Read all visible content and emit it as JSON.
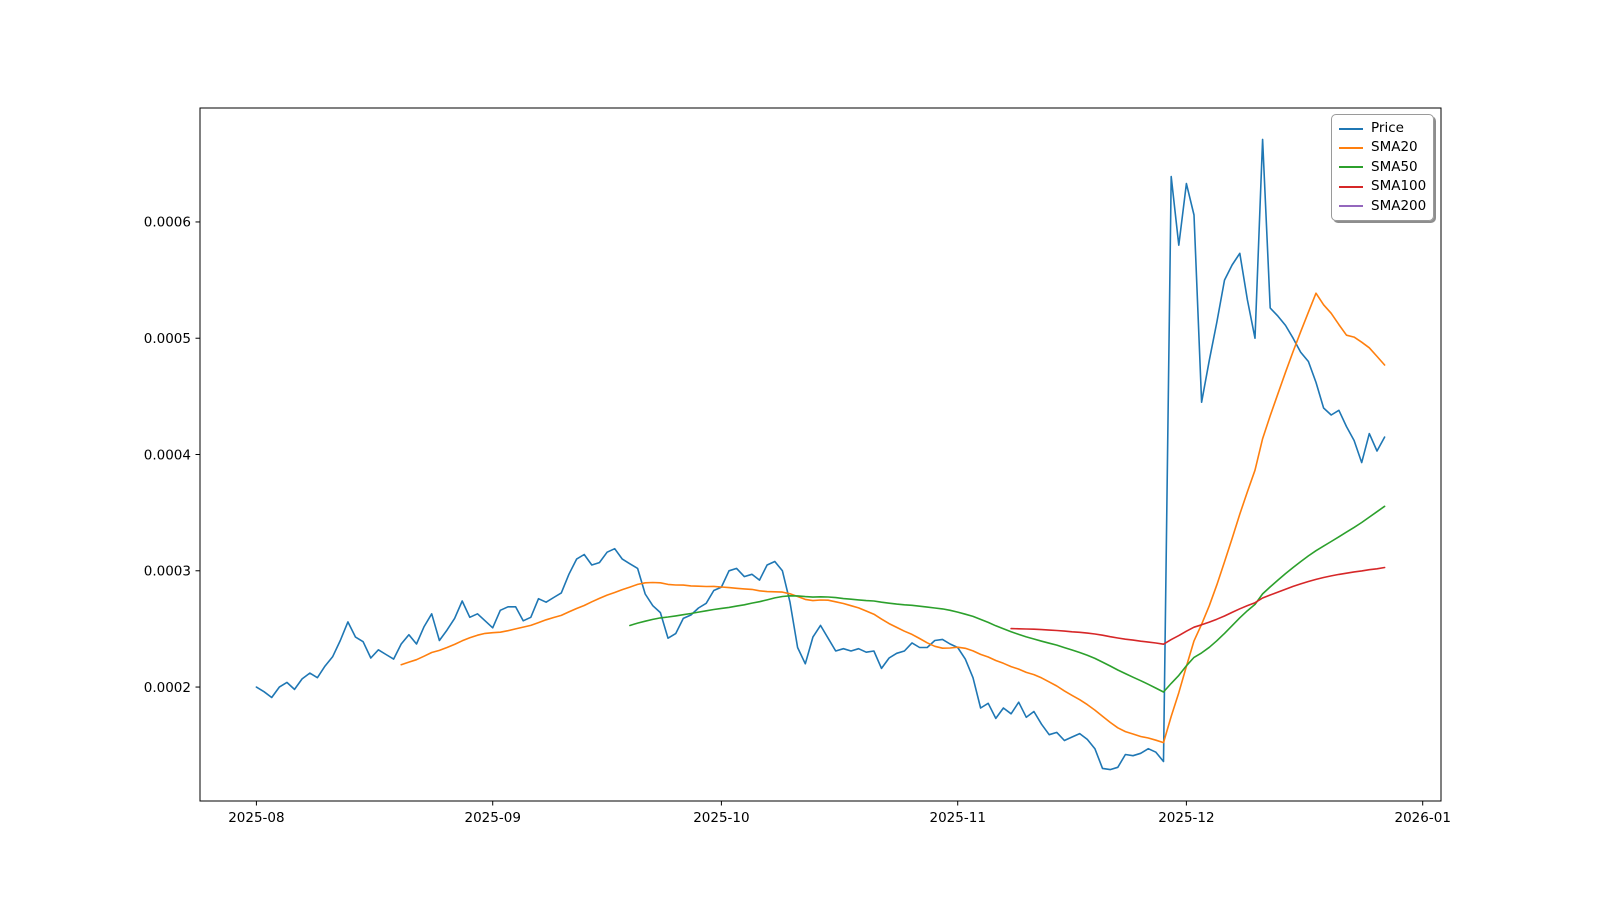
{
  "figure": {
    "background": "#ffffff"
  },
  "chart_data": {
    "type": "line",
    "title": "",
    "xlabel": "",
    "ylabel": "",
    "grid": false,
    "x_axis": {
      "frequency": "daily",
      "start_date": "2025-08-01",
      "end_date": "2025-12-27",
      "tick_labels": [
        "2025-08",
        "2025-09",
        "2025-10",
        "2025-11",
        "2025-12",
        "2026-01"
      ],
      "tick_day_offsets": [
        0,
        31,
        61,
        92,
        122,
        153
      ],
      "xlim_days": [
        -7.4,
        155.4
      ]
    },
    "y_axis": {
      "tick_labels": [
        "0.0002",
        "0.0003",
        "0.0004",
        "0.0005",
        "0.0006"
      ],
      "tick_values": [
        0.0002,
        0.0003,
        0.0004,
        0.0005,
        0.0006
      ],
      "ylim": [
        0.000102,
        0.000698
      ]
    },
    "series": [
      {
        "name": "Price",
        "color": "#1f77b4",
        "kind": "raw",
        "values": [
          0.0002,
          0.000196,
          0.000191,
          0.0002,
          0.000204,
          0.000198,
          0.000207,
          0.000212,
          0.000208,
          0.000218,
          0.000226,
          0.00024,
          0.000256,
          0.000243,
          0.000239,
          0.000225,
          0.000232,
          0.000228,
          0.000224,
          0.000237,
          0.000245,
          0.000237,
          0.000252,
          0.000263,
          0.00024,
          0.000249,
          0.000259,
          0.000274,
          0.00026,
          0.000263,
          0.000257,
          0.000251,
          0.000266,
          0.000269,
          0.000269,
          0.000257,
          0.00026,
          0.000276,
          0.000273,
          0.000277,
          0.000281,
          0.000297,
          0.00031,
          0.000314,
          0.000305,
          0.000307,
          0.000316,
          0.000319,
          0.00031,
          0.000306,
          0.000302,
          0.00028,
          0.00027,
          0.000264,
          0.000242,
          0.000246,
          0.000259,
          0.000262,
          0.000268,
          0.000272,
          0.000283,
          0.000286,
          0.0003,
          0.000302,
          0.000295,
          0.000297,
          0.000292,
          0.000305,
          0.000308,
          0.0003,
          0.000273,
          0.000234,
          0.00022,
          0.000243,
          0.000253,
          0.000242,
          0.000231,
          0.000233,
          0.000231,
          0.000233,
          0.00023,
          0.000231,
          0.000216,
          0.000225,
          0.000229,
          0.000231,
          0.000238,
          0.000234,
          0.000234,
          0.00024,
          0.000241,
          0.000237,
          0.000234,
          0.000224,
          0.000208,
          0.000182,
          0.000186,
          0.000173,
          0.000182,
          0.000177,
          0.000187,
          0.000174,
          0.000179,
          0.000168,
          0.000159,
          0.000161,
          0.000154,
          0.000157,
          0.00016,
          0.000155,
          0.000147,
          0.00013,
          0.000129,
          0.000131,
          0.000142,
          0.000141,
          0.000143,
          0.000147,
          0.000144,
          0.000136,
          0.000639,
          0.00058,
          0.000633,
          0.000606,
          0.000445,
          0.000481,
          0.000514,
          0.00055,
          0.000563,
          0.000573,
          0.000533,
          0.0005,
          0.000671,
          0.000526,
          0.000519,
          0.000511,
          0.0005,
          0.000488,
          0.00048,
          0.000462,
          0.00044,
          0.000434,
          0.000438,
          0.000424,
          0.000412,
          0.000393,
          0.000418,
          0.000403,
          0.000415
        ]
      },
      {
        "name": "SMA20",
        "color": "#ff7f0e",
        "kind": "sma",
        "window": 20
      },
      {
        "name": "SMA50",
        "color": "#2ca02c",
        "kind": "sma",
        "window": 50
      },
      {
        "name": "SMA100",
        "color": "#d62728",
        "kind": "sma",
        "window": 100
      },
      {
        "name": "SMA200",
        "color": "#9467bd",
        "kind": "sma",
        "window": 200
      }
    ],
    "legend": {
      "position": "upper right",
      "entries": [
        {
          "label": "Price",
          "color": "#1f77b4"
        },
        {
          "label": "SMA20",
          "color": "#ff7f0e"
        },
        {
          "label": "SMA50",
          "color": "#2ca02c"
        },
        {
          "label": "SMA100",
          "color": "#d62728"
        },
        {
          "label": "SMA200",
          "color": "#9467bd"
        }
      ]
    }
  }
}
